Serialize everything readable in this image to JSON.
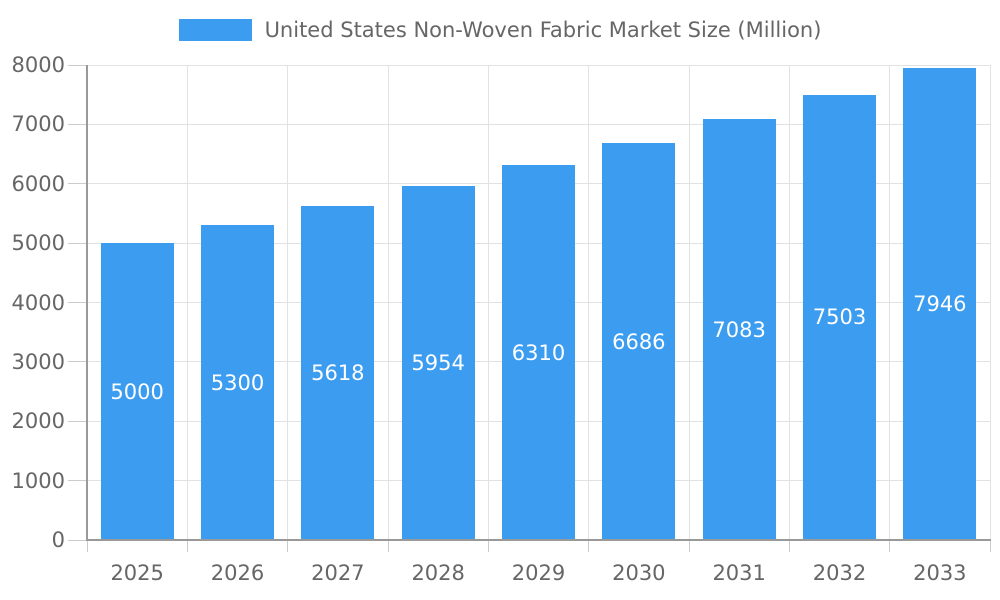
{
  "legend": {
    "label": "United States Non-Woven Fabric Market Size (Million)"
  },
  "chart_data": {
    "type": "bar",
    "title": "United States Non-Woven Fabric Market Size (Million)",
    "categories": [
      "2025",
      "2026",
      "2027",
      "2028",
      "2029",
      "2030",
      "2031",
      "2032",
      "2033"
    ],
    "values": [
      5000,
      5300,
      5618,
      5954,
      6310,
      6686,
      7083,
      7503,
      7946
    ],
    "bar_value_labels": [
      "5000",
      "5300",
      "5618",
      "5954",
      "6310",
      "6686",
      "7083",
      "7503",
      "7946"
    ],
    "xlabel": "",
    "ylabel": "",
    "ylim": [
      0,
      8000
    ],
    "yticks": [
      0,
      1000,
      2000,
      3000,
      4000,
      5000,
      6000,
      7000,
      8000
    ],
    "ytick_labels": [
      "0",
      "1000",
      "2000",
      "3000",
      "4000",
      "5000",
      "6000",
      "7000",
      "8000"
    ],
    "grid": "both",
    "legend_position": "top",
    "value_label_position": "center"
  },
  "colors": {
    "bar": "#3b9cf0",
    "bar_label": "#ffffff",
    "text": "#666666",
    "grid": "#e2e2e2",
    "axis": "#999999",
    "tick": "#cccccc",
    "background": "#ffffff"
  }
}
